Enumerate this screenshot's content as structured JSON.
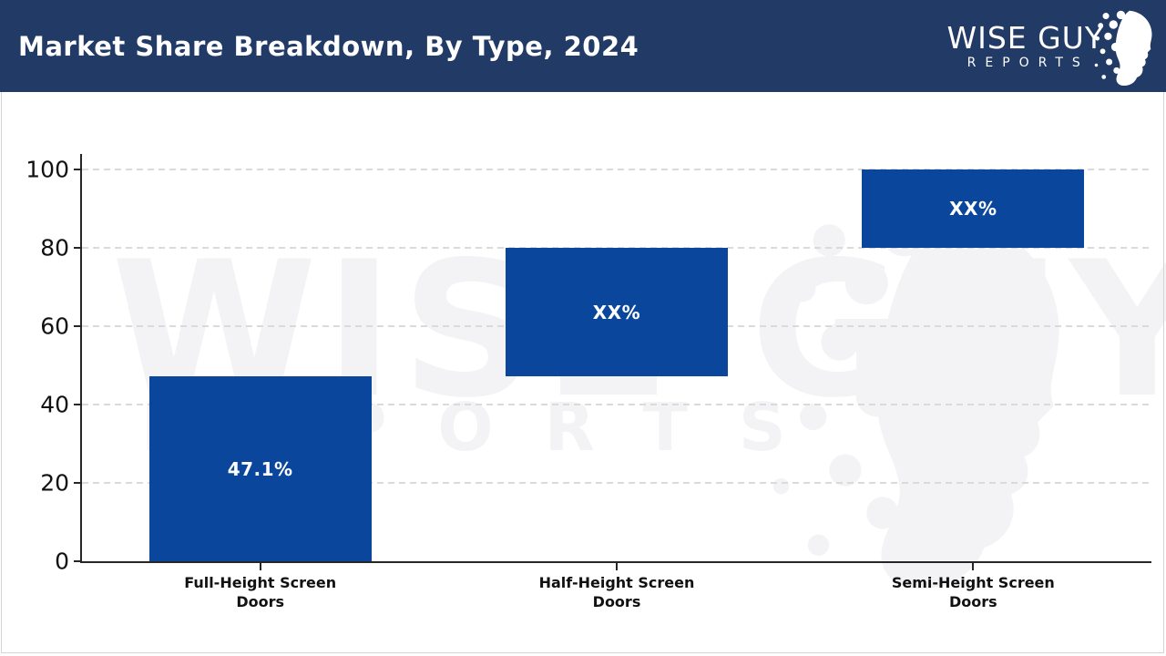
{
  "header": {
    "title": "Market Share Breakdown, By Type, 2024",
    "logo": {
      "brand_line1": "WISE GUY",
      "brand_line2": "REPORTS"
    }
  },
  "watermark": {
    "line1": "WISE GUY",
    "line2": "REPORTS"
  },
  "chart_data": {
    "type": "bar",
    "subtype": "waterfall",
    "title": "Market Share Breakdown, By Type, 2024",
    "categories": [
      "Full-Height Screen Doors",
      "Half-Height Screen Doors",
      "Semi-Height Screen Doors"
    ],
    "segments": [
      {
        "category": "Full-Height Screen Doors",
        "start": 0,
        "end": 47.1,
        "label": "47.1%"
      },
      {
        "category": "Half-Height Screen Doors",
        "start": 47.1,
        "end": 80,
        "label": "XX%"
      },
      {
        "category": "Semi-Height Screen Doors",
        "start": 80,
        "end": 100,
        "label": "XX%"
      }
    ],
    "xlabel": "",
    "ylabel": "",
    "ylim": [
      0,
      100
    ],
    "yticks": [
      0,
      20,
      40,
      60,
      80,
      100
    ],
    "grid": "horizontal dashed",
    "legend": "none",
    "bar_color": "#0a479c",
    "bar_label_color": "#ffffff"
  },
  "colors": {
    "header_bg": "#213a66",
    "bar": "#0a479c",
    "grid_line": "#dadada",
    "axis_line": "#262626",
    "watermark": "#f3f3f5",
    "page_bg": "#ffffff",
    "border": "#d4d4d4"
  }
}
